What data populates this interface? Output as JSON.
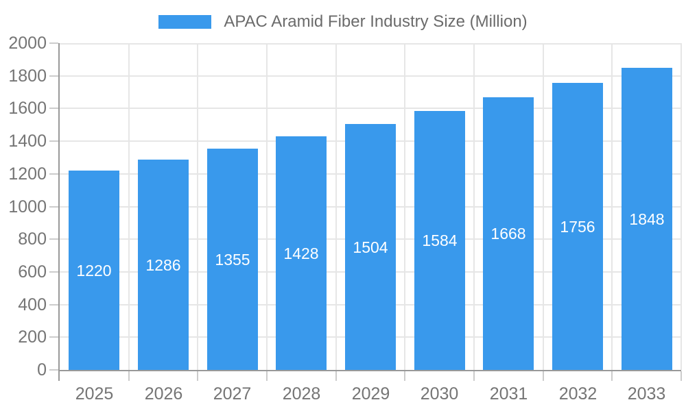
{
  "chart_data": {
    "type": "bar",
    "title": "APAC Aramid Fiber Industry Size (Million)",
    "legend_position": "top",
    "categories": [
      "2025",
      "2026",
      "2027",
      "2028",
      "2029",
      "2030",
      "2031",
      "2032",
      "2033"
    ],
    "values": [
      1220,
      1286,
      1355,
      1428,
      1504,
      1584,
      1668,
      1756,
      1848
    ],
    "y_ticks": [
      0,
      200,
      400,
      600,
      800,
      1000,
      1200,
      1400,
      1600,
      1800,
      2000
    ],
    "ylim": [
      0,
      2000
    ],
    "xlabel": "",
    "ylabel": "",
    "grid": true,
    "colors": {
      "bar": "#3999EC",
      "value_label": "#ffffff",
      "axis_line": "#999999",
      "tick": "#cccccc",
      "gridline": "#e6e6e6",
      "axis_text": "#757575",
      "legend_text": "#6b6b6b"
    }
  }
}
